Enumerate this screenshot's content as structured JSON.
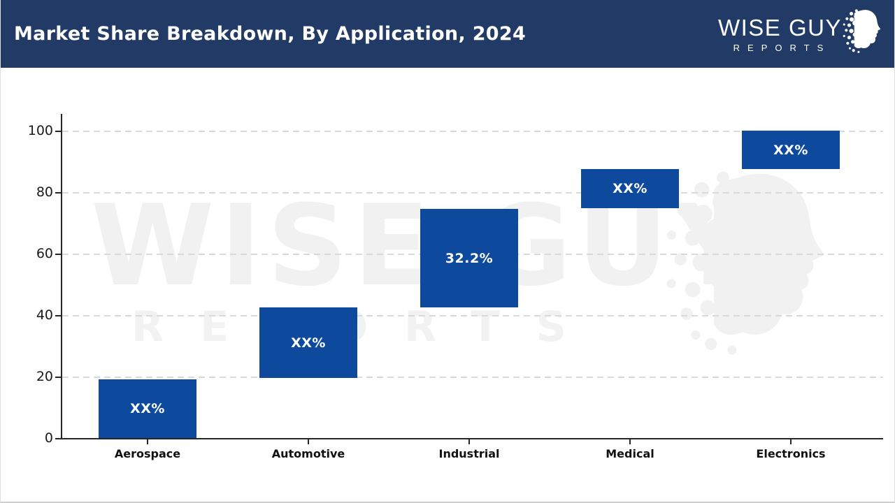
{
  "header": {
    "title": "Market Share Breakdown, By Application, 2024",
    "bg_color": "#213A66",
    "logo": {
      "line1": "WISE GUY",
      "line2": "REPORTS"
    }
  },
  "watermark": {
    "line1": "WISE GUY",
    "line2": "REPORTS"
  },
  "chart_data": {
    "type": "bar",
    "variant": "floating-waterfall",
    "title": "Market Share Breakdown, By Application, 2024",
    "xlabel": "",
    "ylabel": "",
    "categories": [
      "Aerospace",
      "Automotive",
      "Industrial",
      "Medical",
      "Electronics"
    ],
    "segments": [
      {
        "category": "Aerospace",
        "from": 0,
        "to": 19.2,
        "label": "XX%"
      },
      {
        "category": "Automotive",
        "from": 19.5,
        "to": 42.4,
        "label": "XX%"
      },
      {
        "category": "Industrial",
        "from": 42.4,
        "to": 74.6,
        "label": "32.2%"
      },
      {
        "category": "Medical",
        "from": 74.8,
        "to": 87.5,
        "label": "XX%"
      },
      {
        "category": "Electronics",
        "from": 87.5,
        "to": 100,
        "label": "XX%"
      }
    ],
    "yticks": [
      0,
      20,
      40,
      60,
      80,
      100
    ],
    "ylim": [
      0,
      105.5
    ],
    "grid": "horizontal-dashed",
    "legend": "none",
    "bar_color": "#0D4A9E",
    "bar_label_color": "#FFFFFF",
    "axis_color": "#262626",
    "grid_color": "#D9D9D9"
  }
}
